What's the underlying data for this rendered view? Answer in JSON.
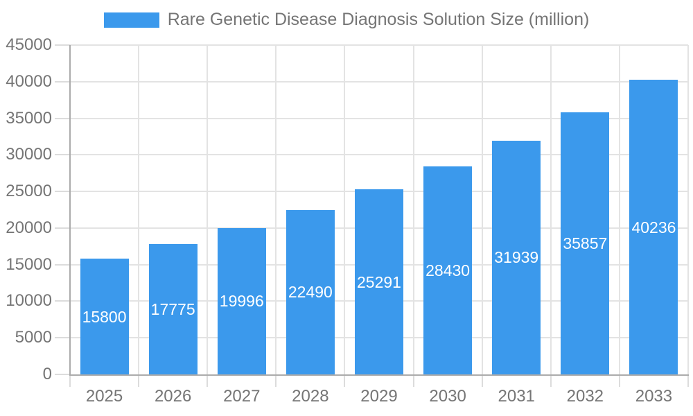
{
  "chart_data": {
    "type": "bar",
    "title": "Rare Genetic Disease Diagnosis Solution Size (million)",
    "categories": [
      "2025",
      "2026",
      "2027",
      "2028",
      "2029",
      "2030",
      "2031",
      "2032",
      "2033"
    ],
    "values": [
      15800,
      17775,
      19996,
      22490,
      25291,
      28430,
      31939,
      35857,
      40236
    ],
    "yticks": [
      0,
      5000,
      10000,
      15000,
      20000,
      25000,
      30000,
      35000,
      40000,
      45000
    ],
    "ylim": [
      0,
      45000
    ],
    "xlabel": "",
    "ylabel": "",
    "grid": true,
    "legend_position": "top",
    "value_labels_shown": true,
    "colors": {
      "bar": "#3B99EC",
      "value_label": "#FFFFFF",
      "axis_label": "#757575",
      "axis_line": "#ABABAB",
      "gridline": "#E3E3E3",
      "tick": "#DCDCDC"
    }
  }
}
